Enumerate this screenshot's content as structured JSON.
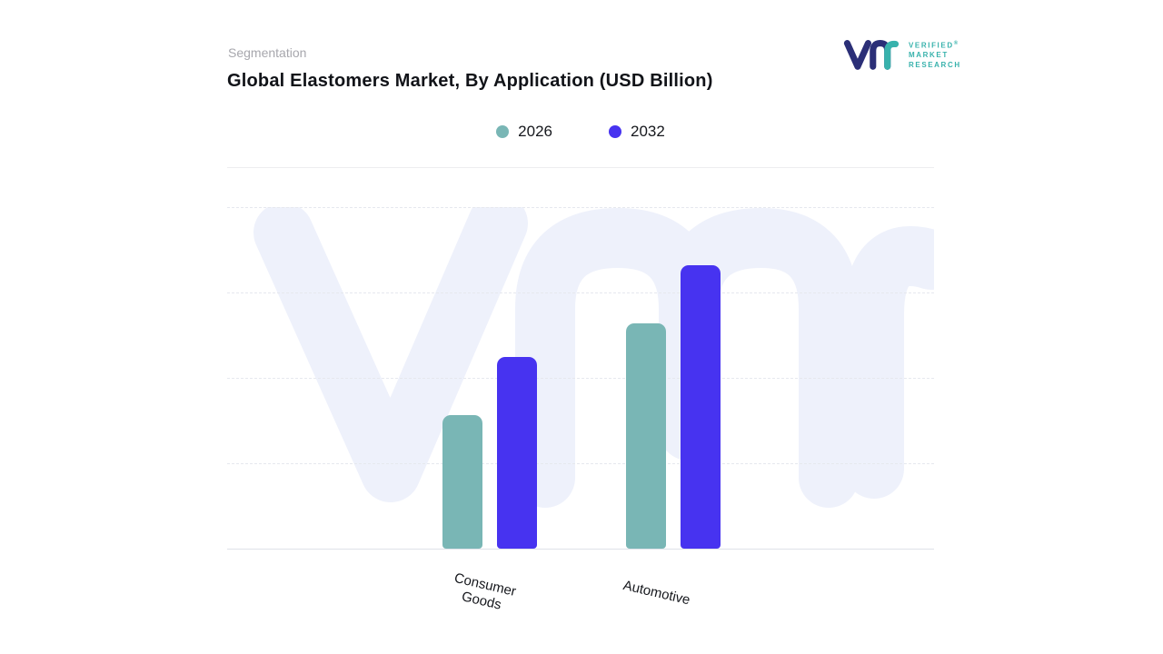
{
  "page": {
    "eyebrow": "Segmentation",
    "title": "Global Elastomers Market, By Application (USD Billion)"
  },
  "logo": {
    "mark": "vmr-logo",
    "line1": "VERIFIED",
    "registered": "®",
    "line2": "MARKET",
    "line3": "RESEARCH",
    "brand_teal": "#38b2ac",
    "brand_navy": "#2b2f77"
  },
  "legend": [
    {
      "label": "2026",
      "color": "#79b6b5"
    },
    {
      "label": "2032",
      "color": "#4733f0"
    }
  ],
  "chart_data": {
    "type": "bar",
    "title": "Global Elastomers Market, By Application (USD Billion)",
    "categories": [
      "Consumer Goods",
      "Automotive"
    ],
    "series": [
      {
        "name": "2026",
        "color": "#79b6b5",
        "values": [
          39,
          66
        ]
      },
      {
        "name": "2032",
        "color": "#4733f0",
        "values": [
          56,
          83
        ]
      }
    ],
    "xlabel": "",
    "ylabel": "USD Billion",
    "ylim": [
      0,
      100
    ],
    "grid": "horizontal-dashed",
    "legend_position": "top",
    "y_axis_labels_visible": false
  },
  "colors": {
    "background": "#ffffff",
    "watermark": "#eef1fb",
    "gridline": "#e6e8ee",
    "text_dark": "#111318",
    "text_muted": "#a7a7ad"
  }
}
